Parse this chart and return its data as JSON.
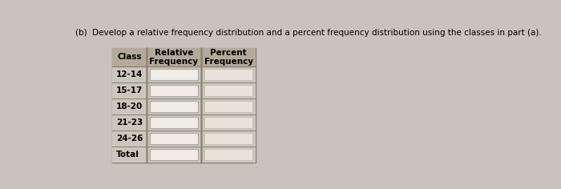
{
  "title": "(b)  Develop a relative frequency distribution and a percent frequency distribution using the classes in part (a).",
  "col_headers": [
    "Class",
    "Relative\nFrequency",
    "Percent\nFrequency"
  ],
  "rows": [
    "12-14",
    "15-17",
    "18-20",
    "21-23",
    "24-26",
    "Total"
  ],
  "fig_bg": "#c8c3bc",
  "table_outer_bg": "#b5a99a",
  "header_bg": "#b5a99a",
  "row_bg": "#ccc6bc",
  "class_col_bg": "#ccc6bc",
  "input_box1_bg": "#f0ede8",
  "input_box1_edge": "#aaa9a0",
  "input_box2_bg": "#e8e2da",
  "input_box2_edge": "#aaa9a0",
  "table_border_color": "#888070",
  "title_fontsize": 7.5,
  "header_fontsize": 7.5,
  "cell_fontsize": 7.5,
  "fig_width": 7.0,
  "fig_height": 2.36
}
